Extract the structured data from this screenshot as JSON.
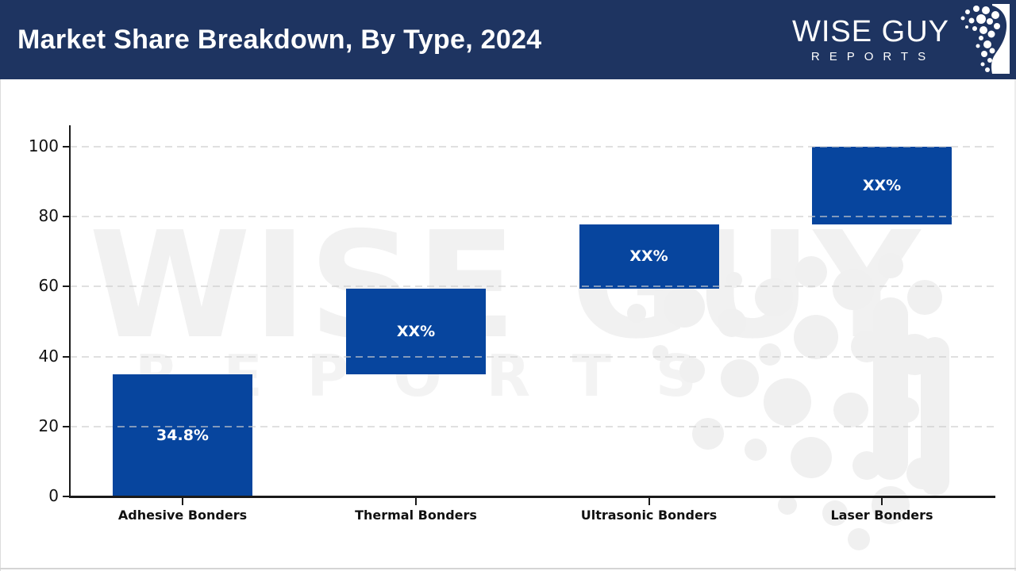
{
  "header": {
    "title": "Market Share Breakdown, By Type, 2024",
    "logo": {
      "name": "WISE GUY",
      "subtitle": "REPORTS"
    }
  },
  "watermark": {
    "name": "WISE GUY",
    "subtitle": "REPORTS"
  },
  "colors": {
    "header_bg": "#1e3461",
    "bar": "#07459e",
    "axis": "#1a1a1a",
    "gridline": "#d9d9d9",
    "bar_label": "#ffffff",
    "watermark": "#f1f1f1"
  },
  "chart_data": {
    "type": "bar",
    "subtype": "waterfall-stacked",
    "title": "Market Share Breakdown, By Type, 2024",
    "categories": [
      "Adhesive Bonders",
      "Thermal Bonders",
      "Ultrasonic Bonders",
      "Laser Bonders"
    ],
    "segments": [
      {
        "category": "Adhesive Bonders",
        "start": 0,
        "end": 34.8,
        "label": "34.8%"
      },
      {
        "category": "Thermal Bonders",
        "start": 34.8,
        "end": 59.4,
        "label": "XX%"
      },
      {
        "category": "Ultrasonic Bonders",
        "start": 59.4,
        "end": 77.8,
        "label": "XX%"
      },
      {
        "category": "Laser Bonders",
        "start": 77.8,
        "end": 100,
        "label": "XX%"
      }
    ],
    "yticks": [
      0,
      20,
      40,
      60,
      80,
      100
    ],
    "ylim": [
      0,
      105
    ],
    "xlabel": "",
    "ylabel": "",
    "grid": "horizontal-dashed",
    "legend_position": "none",
    "bar_color": "#07459e",
    "value_label_color": "#ffffff"
  }
}
